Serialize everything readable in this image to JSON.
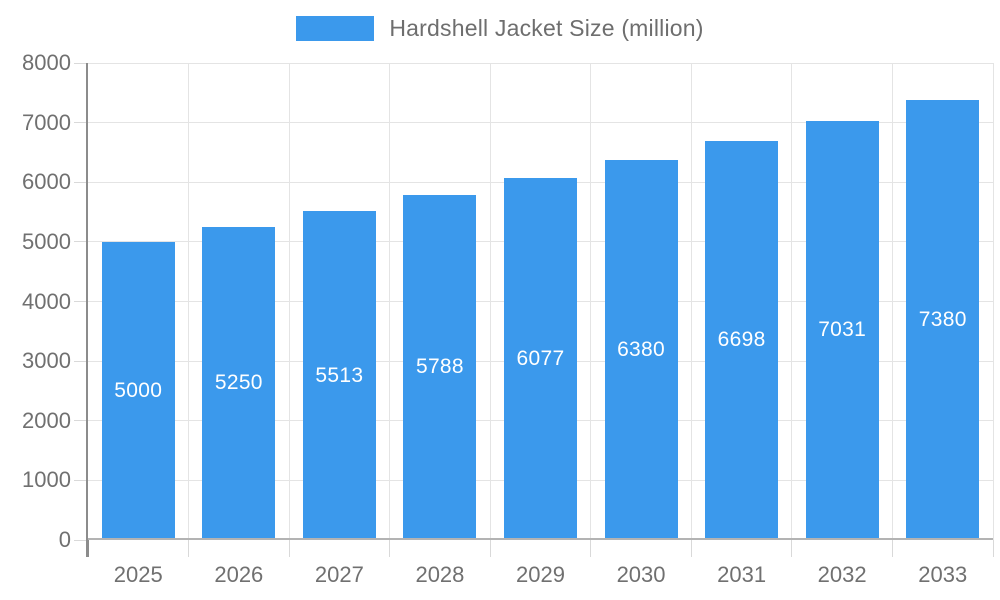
{
  "chart_data": {
    "type": "bar",
    "title": "Hardshell Jacket Size (million)",
    "categories": [
      "2025",
      "2026",
      "2027",
      "2028",
      "2029",
      "2030",
      "2031",
      "2032",
      "2033"
    ],
    "values": [
      5000,
      5250,
      5513,
      5788,
      6077,
      6380,
      6698,
      7031,
      7380
    ],
    "value_labels_position": "inside-center",
    "xlabel": "",
    "ylabel": "",
    "ylim": [
      0,
      8000
    ],
    "ytick_step": 1000,
    "ytick_labels": [
      "0",
      "1000",
      "2000",
      "3000",
      "4000",
      "5000",
      "6000",
      "7000",
      "8000"
    ],
    "grid": true,
    "legend_position": "top-center"
  },
  "legend": {
    "label": "Hardshell Jacket Size (million)"
  },
  "colors": {
    "bar": "#3B99EC",
    "grid": "#e4e4e4",
    "tick": "#d9d9d9",
    "y_axis_line": "#8c8c8c",
    "x_axis_line": "#b3b3b3",
    "axis_label_text": "#707070",
    "value_label_text": "#ffffff",
    "legend_text": "#6e6e6e"
  }
}
